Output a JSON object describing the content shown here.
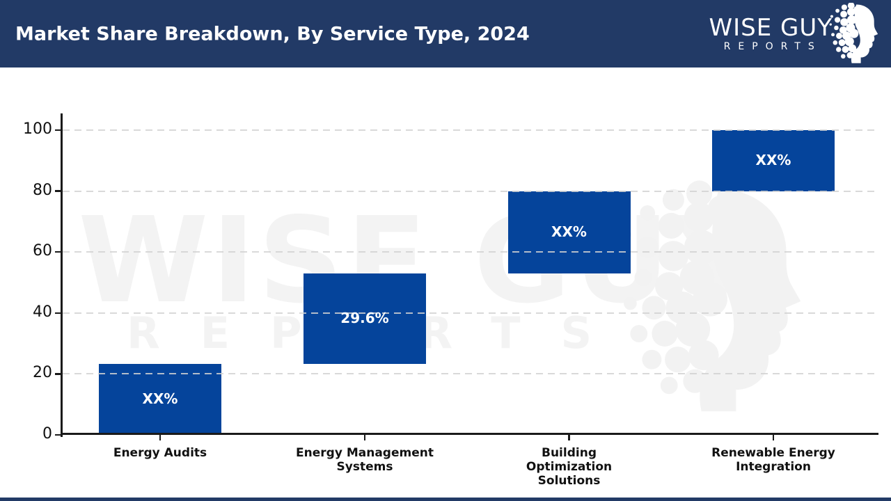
{
  "header": {
    "title": "Market Share Breakdown, By Service Type, 2024",
    "bg_color": "#223a66",
    "logo": {
      "line1": "WISE GUY",
      "line2": "REPORTS"
    }
  },
  "watermark": {
    "line1": "WISE GUY",
    "line2": "REPORTS"
  },
  "chart_data": {
    "type": "bar",
    "subtype": "waterfall-floating-bars",
    "title": "Market Share Breakdown, By Service Type, 2024",
    "categories": [
      "Energy Audits",
      "Energy Management Systems",
      "Building Optimization Solutions",
      "Renewable Energy Integration"
    ],
    "category_lines": [
      [
        "Energy Audits"
      ],
      [
        "Energy Management",
        "Systems"
      ],
      [
        "Building",
        "Optimization",
        "Solutions"
      ],
      [
        "Renewable Energy",
        "Integration"
      ]
    ],
    "series": [
      {
        "name": "Market Share (%)",
        "segments": [
          {
            "category": "Energy Audits",
            "start": 0,
            "end": 23.4,
            "value": 23.4,
            "label": "XX%"
          },
          {
            "category": "Energy Management Systems",
            "start": 23.4,
            "end": 53,
            "value": 29.6,
            "label": "29.6%"
          },
          {
            "category": "Building Optimization Solutions",
            "start": 53,
            "end": 80,
            "value": 27,
            "label": "XX%"
          },
          {
            "category": "Renewable Energy Integration",
            "start": 80,
            "end": 100,
            "value": 20,
            "label": "XX%"
          }
        ]
      }
    ],
    "ylim": [
      0,
      100
    ],
    "yticks": [
      0,
      20,
      40,
      60,
      80,
      100
    ],
    "grid": "horizontal-dashed",
    "legend": "none",
    "bar_color": "#05449b",
    "bar_label_color": "#ffffff",
    "axis_color": "#1a1a1a",
    "grid_color": "#d2d2d2"
  }
}
